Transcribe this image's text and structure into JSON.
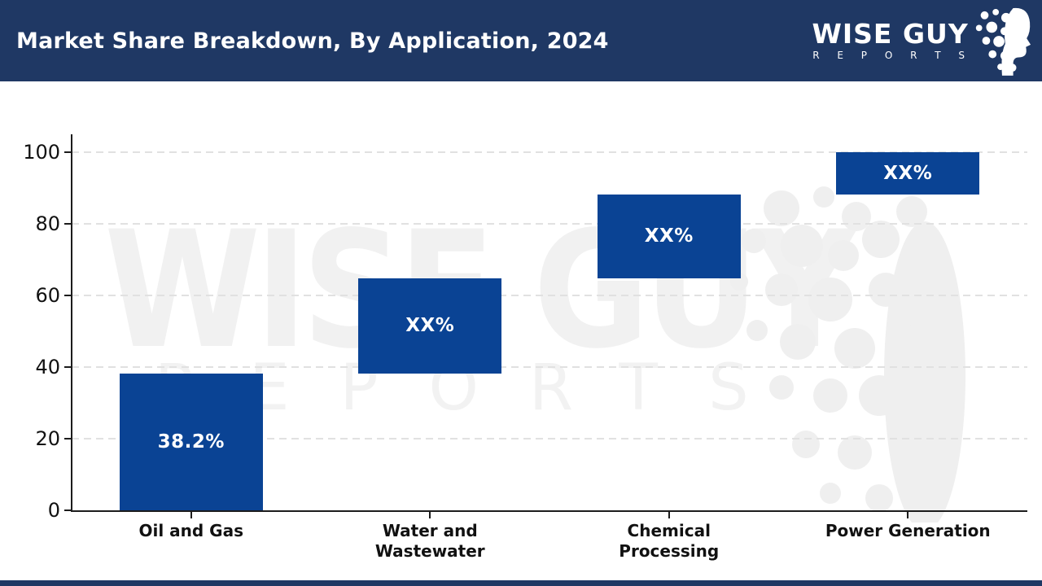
{
  "header": {
    "title": "Market Share Breakdown, By Application, 2024",
    "bg_color": "#1f3864"
  },
  "brand": {
    "name_top": "WISE GUY",
    "name_bottom": "R E P O R T S"
  },
  "watermark": {
    "text_top": "WISE GUY",
    "text_bottom": "REPORTS"
  },
  "chart_data": {
    "type": "bar",
    "variant": "waterfall",
    "title": "Market Share Breakdown, By Application, 2024",
    "categories": [
      "Oil and Gas",
      "Water and Wastewater",
      "Chemical Processing",
      "Power Generation"
    ],
    "xtick_lines": [
      [
        "Oil and Gas"
      ],
      [
        "Water and",
        "Wastewater"
      ],
      [
        "Chemical",
        "Processing"
      ],
      [
        "Power Generation"
      ]
    ],
    "segments": [
      {
        "category": "Oil and Gas",
        "start": 0,
        "end": 38.2,
        "value": 38.2,
        "label": "38.2%"
      },
      {
        "category": "Water and Wastewater",
        "start": 38.2,
        "end": 64.8,
        "value": 26.6,
        "label": "XX%"
      },
      {
        "category": "Chemical Processing",
        "start": 64.8,
        "end": 88.2,
        "value": 23.4,
        "label": "XX%"
      },
      {
        "category": "Power Generation",
        "start": 88.2,
        "end": 100,
        "value": 11.8,
        "label": "XX%"
      }
    ],
    "yticks": [
      0,
      20,
      40,
      60,
      80,
      100
    ],
    "ylim": [
      0,
      105
    ],
    "xlabel": "",
    "ylabel": "",
    "legend": "none",
    "grid": {
      "horizontal": true,
      "style": "dashed"
    },
    "bar_color": "#0a4394",
    "bar_label_color": "#ffffff"
  },
  "footer": {
    "bg_color": "#1f3864"
  }
}
